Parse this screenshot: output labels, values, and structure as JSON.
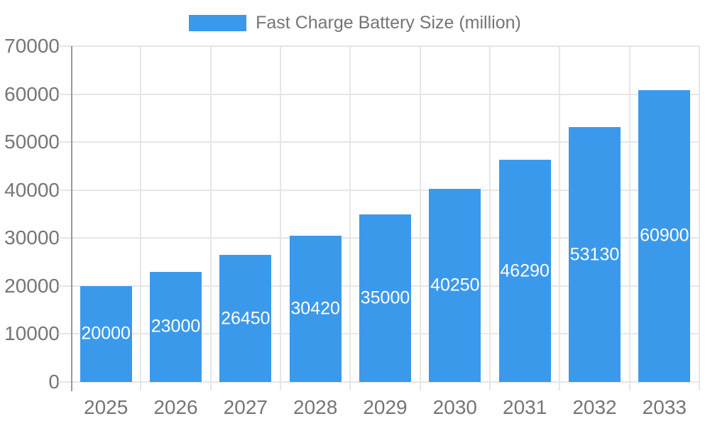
{
  "legend": {
    "label": "Fast Charge Battery Size (million)",
    "swatch_color": "#3b99ec"
  },
  "chart_data": {
    "type": "bar",
    "title": "Fast Charge Battery Size (million)",
    "categories": [
      "2025",
      "2026",
      "2027",
      "2028",
      "2029",
      "2030",
      "2031",
      "2032",
      "2033"
    ],
    "values": [
      20000,
      23000,
      26450,
      30420,
      35000,
      40250,
      46290,
      53130,
      60900
    ],
    "series": [
      {
        "name": "Fast Charge Battery Size (million)",
        "values": [
          20000,
          23000,
          26450,
          30420,
          35000,
          40250,
          46290,
          53130,
          60900
        ]
      }
    ],
    "xlabel": "",
    "ylabel": "",
    "ylim": [
      0,
      70000
    ],
    "ytick_step": 10000,
    "yticks": [
      0,
      10000,
      20000,
      30000,
      40000,
      50000,
      60000,
      70000
    ],
    "grid": true,
    "legend_position": "top",
    "value_label_position": "inside-center",
    "bar_color": "#3b99ec",
    "value_label_color": "#ffffff",
    "axis_text_color": "#757575",
    "grid_color": "#e6e6e6",
    "tick_color": "#e0e0e0",
    "axis_line_color": "#999999"
  }
}
